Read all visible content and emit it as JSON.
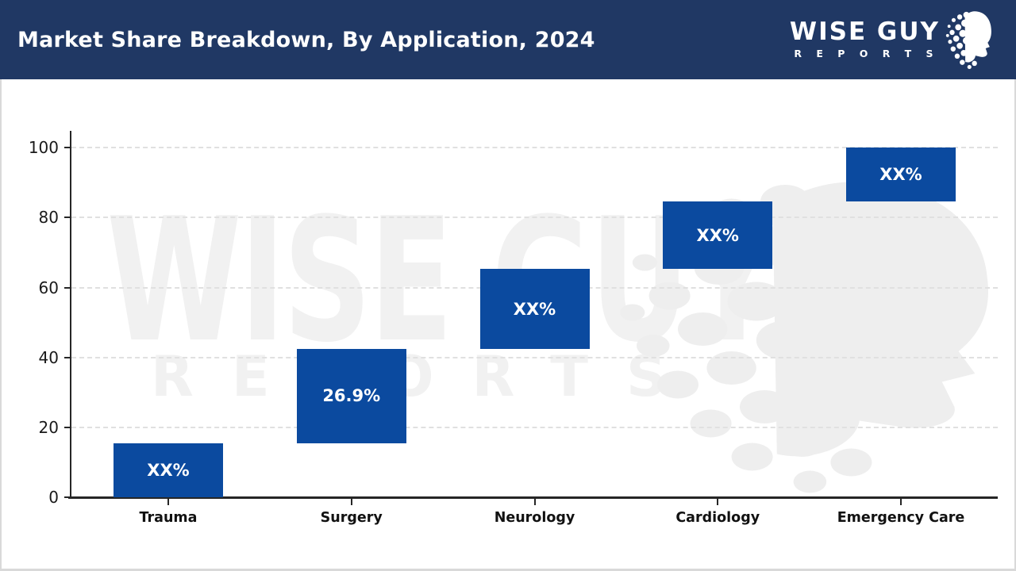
{
  "header": {
    "title": "Market Share Breakdown, By Application, 2024",
    "bg_color": "#203864",
    "logo": {
      "line1": "WISE GUY",
      "line2": "R E P O R T S",
      "face_icon": "dotted-head-profile-icon"
    }
  },
  "watermark": {
    "line1": "WISE GUY",
    "line2": "REPORTS",
    "face_icon": "dotted-head-profile-icon",
    "color": "#f1f1f1"
  },
  "chart_data": {
    "type": "bar",
    "subtype": "waterfall-floating-bars",
    "title": "Market Share Breakdown, By Application, 2024",
    "xlabel": "",
    "ylabel": "",
    "categories": [
      "Trauma",
      "Surgery",
      "Neurology",
      "Cardiology",
      "Emergency Care"
    ],
    "segments": [
      {
        "category": "Trauma",
        "start": 0,
        "end": 15.4,
        "label": "XX%"
      },
      {
        "category": "Surgery",
        "start": 15.5,
        "end": 42.4,
        "label": "26.9%"
      },
      {
        "category": "Neurology",
        "start": 42.4,
        "end": 65.3,
        "label": "XX%"
      },
      {
        "category": "Cardiology",
        "start": 65.3,
        "end": 84.6,
        "label": "XX%"
      },
      {
        "category": "Emergency Care",
        "start": 84.6,
        "end": 100,
        "label": "XX%"
      }
    ],
    "yticks": [
      0,
      20,
      40,
      60,
      80,
      100
    ],
    "ylim": [
      0,
      104.8
    ],
    "bar_color": "#0b4a9f",
    "axis_color": "#262626",
    "grid": "horizontal-dashed",
    "legend": "none"
  }
}
